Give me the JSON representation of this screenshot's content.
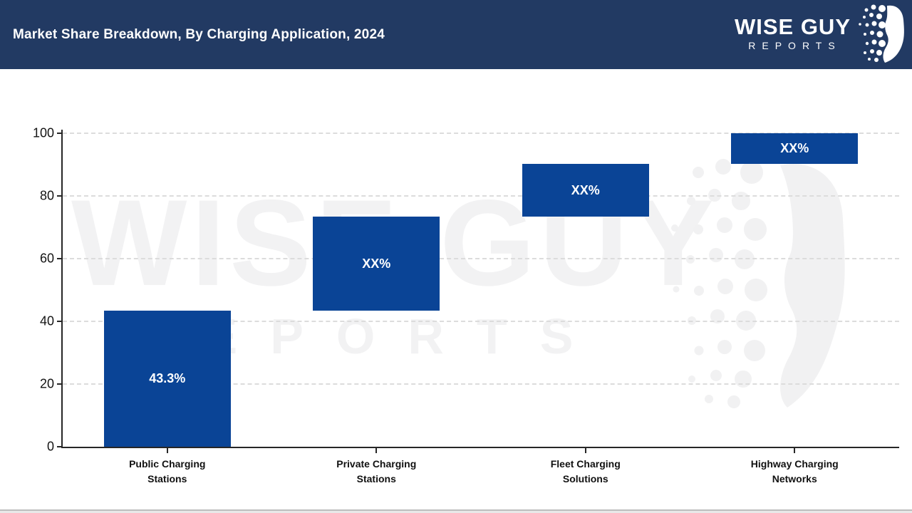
{
  "header": {
    "title": "Market Share Breakdown, By Charging Application, 2024",
    "bg_color": "#223A63",
    "logo": {
      "line1": "WISE GUY",
      "line2": "REPORTS"
    }
  },
  "watermark": {
    "line1": "WISE GUY",
    "line2": "REPORTS"
  },
  "chart_data": {
    "type": "bar",
    "subtype": "floating-waterfall",
    "title": "Market Share Breakdown, By Charging Application, 2024",
    "categories": [
      "Public Charging Stations",
      "Private Charging Stations",
      "Fleet Charging Solutions",
      "Highway Charging Networks"
    ],
    "category_lines": [
      [
        "Public Charging",
        "Stations"
      ],
      [
        "Private Charging",
        "Stations"
      ],
      [
        "Fleet Charging",
        "Solutions"
      ],
      [
        "Highway Charging",
        "Networks"
      ]
    ],
    "segments": [
      {
        "start": 0,
        "end": 43.3,
        "label": "43.3%"
      },
      {
        "start": 43.3,
        "end": 73.3,
        "label": "XX%"
      },
      {
        "start": 73.3,
        "end": 90.3,
        "label": "XX%"
      },
      {
        "start": 90.3,
        "end": 100,
        "label": "XX%"
      }
    ],
    "ylim": [
      0,
      100
    ],
    "yticks": [
      0,
      20,
      40,
      60,
      80,
      100
    ],
    "xlabel": "",
    "ylabel": "",
    "grid": "horizontal-dashed",
    "legend": "none",
    "bar_color": "#0a4496",
    "bar_label_color": "#ffffff",
    "axis_color": "#262626",
    "grid_color": "#dcdcdc",
    "tick_label_color": "#141414"
  }
}
